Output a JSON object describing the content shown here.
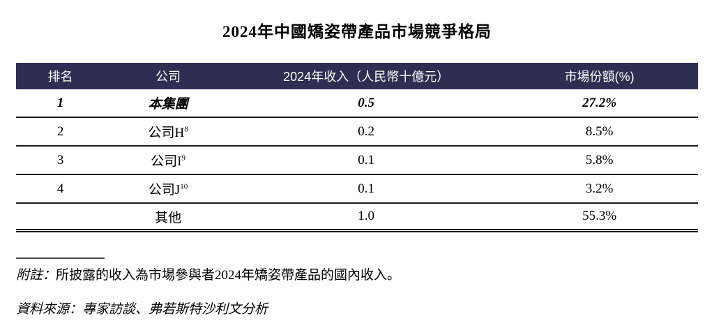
{
  "title": "2024年中國矯姿帶產品市場競爭格局",
  "table": {
    "headers": {
      "rank": "排名",
      "company": "公司",
      "revenue": "2024年收入（人民幣十億元）",
      "share": "市場份額(%)"
    },
    "rows": [
      {
        "rank": "1",
        "company": "本集團",
        "sup": "",
        "revenue": "0.5",
        "share": "27.2%",
        "emphasis": true
      },
      {
        "rank": "2",
        "company": "公司H",
        "sup": "8",
        "revenue": "0.2",
        "share": "8.5%",
        "emphasis": false
      },
      {
        "rank": "3",
        "company": "公司I",
        "sup": "9",
        "revenue": "0.1",
        "share": "5.8%",
        "emphasis": false
      },
      {
        "rank": "4",
        "company": "公司J",
        "sup": "10",
        "revenue": "0.1",
        "share": "3.2%",
        "emphasis": false
      },
      {
        "rank": "",
        "company": "其他",
        "sup": "",
        "revenue": "1.0",
        "share": "55.3%",
        "emphasis": false
      }
    ]
  },
  "footnote": {
    "note_prefix": "附註：",
    "note_text": "所披露的收入為市場參與者2024年矯姿帶產品的國內收入。",
    "source_text": "資料來源：專家訪談、弗若斯特沙利文分析"
  },
  "colors": {
    "header_bg": "#2e2d52",
    "header_text": "#ffffff",
    "body_text": "#000000",
    "rule": "#1c1c1c"
  }
}
